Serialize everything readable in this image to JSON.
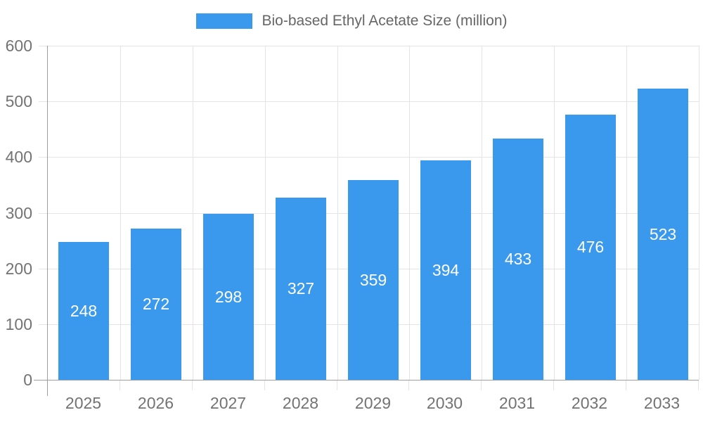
{
  "chart_data": {
    "type": "bar",
    "title": "",
    "legend": {
      "label": "Bio-based Ethyl Acetate Size (million)",
      "position": "top"
    },
    "categories": [
      "2025",
      "2026",
      "2027",
      "2028",
      "2029",
      "2030",
      "2031",
      "2032",
      "2033"
    ],
    "values": [
      248,
      272,
      298,
      327,
      359,
      394,
      433,
      476,
      523
    ],
    "xlabel": "",
    "ylabel": "",
    "ylim": [
      0,
      600
    ],
    "yticks": [
      0,
      100,
      200,
      300,
      400,
      500,
      600
    ],
    "grid": true,
    "grid_lines": "horizontal at y ticks, vertical at category boundaries",
    "value_labels": "centered inside bars",
    "colors": {
      "bar": "#3a99ec",
      "value_label": "#ffffff",
      "grid": "#e4e4e4",
      "axis": "#9e9e9e",
      "tick_label": "#737373",
      "legend_text": "#666666",
      "background": "#ffffff"
    }
  }
}
